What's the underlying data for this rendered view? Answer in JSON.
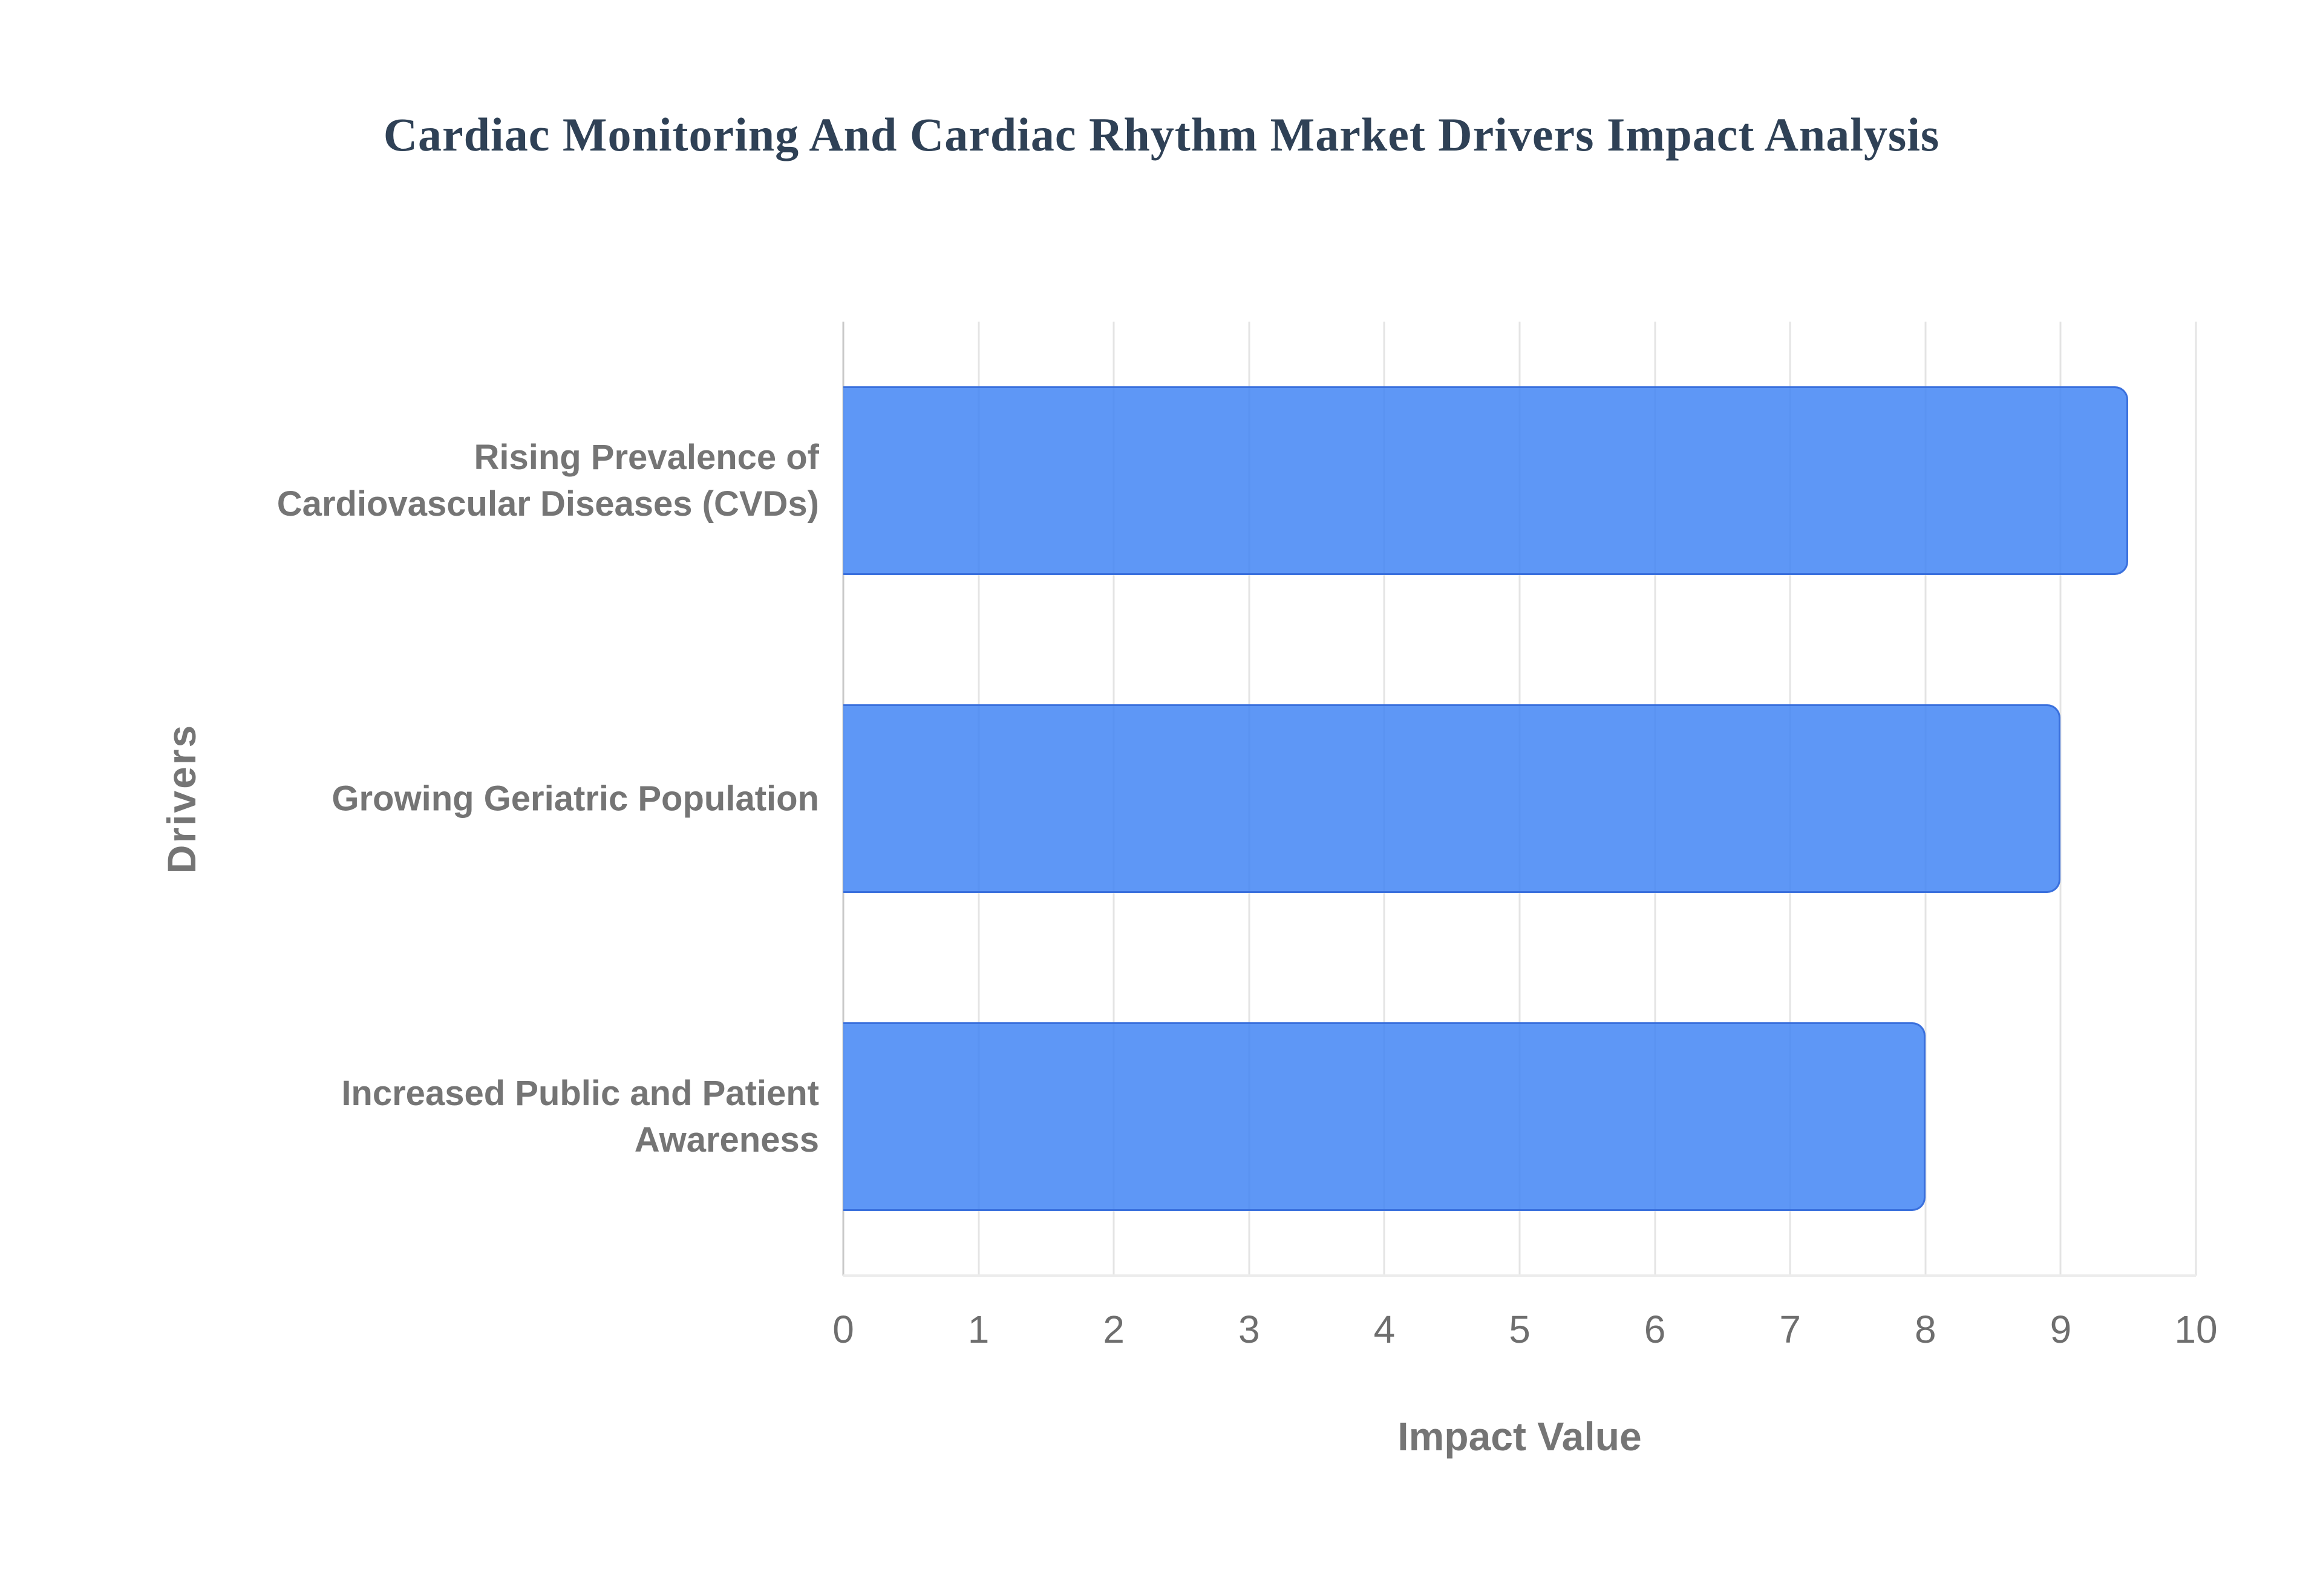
{
  "chart_data": {
    "type": "bar",
    "orientation": "horizontal",
    "title": "Cardiac Monitoring And Cardiac Rhythm Market Drivers Impact Analysis",
    "categories": [
      "Rising Prevalence of Cardiovascular Diseases (CVDs)",
      "Growing Geriatric Population",
      "Increased Public and Patient Awareness"
    ],
    "category_label_lines": [
      [
        "Rising Prevalence of",
        "Cardiovascular Diseases (CVDs)"
      ],
      [
        "Growing Geriatric Population"
      ],
      [
        "Increased Public and Patient",
        "Awareness"
      ]
    ],
    "values": [
      9.5,
      9,
      8
    ],
    "xlabel": "Impact Value",
    "ylabel": "Drivers",
    "xlim": [
      0,
      10
    ],
    "x_ticks": [
      0,
      1,
      2,
      3,
      4,
      5,
      6,
      7,
      8,
      9,
      10
    ],
    "grid": "vertical-only",
    "legend": "none",
    "colors": {
      "bar_fill": "#4285f4",
      "bar_fill_opacity": 0.85,
      "bar_border": "#3a70dd",
      "title_text": "#2f4156",
      "label_text": "#757575",
      "tick_text": "#6e6e6e",
      "gridline": "#e4e4e4",
      "zero_line": "#c9c9c9",
      "baseline": "#ececec",
      "background": "#ffffff"
    }
  }
}
